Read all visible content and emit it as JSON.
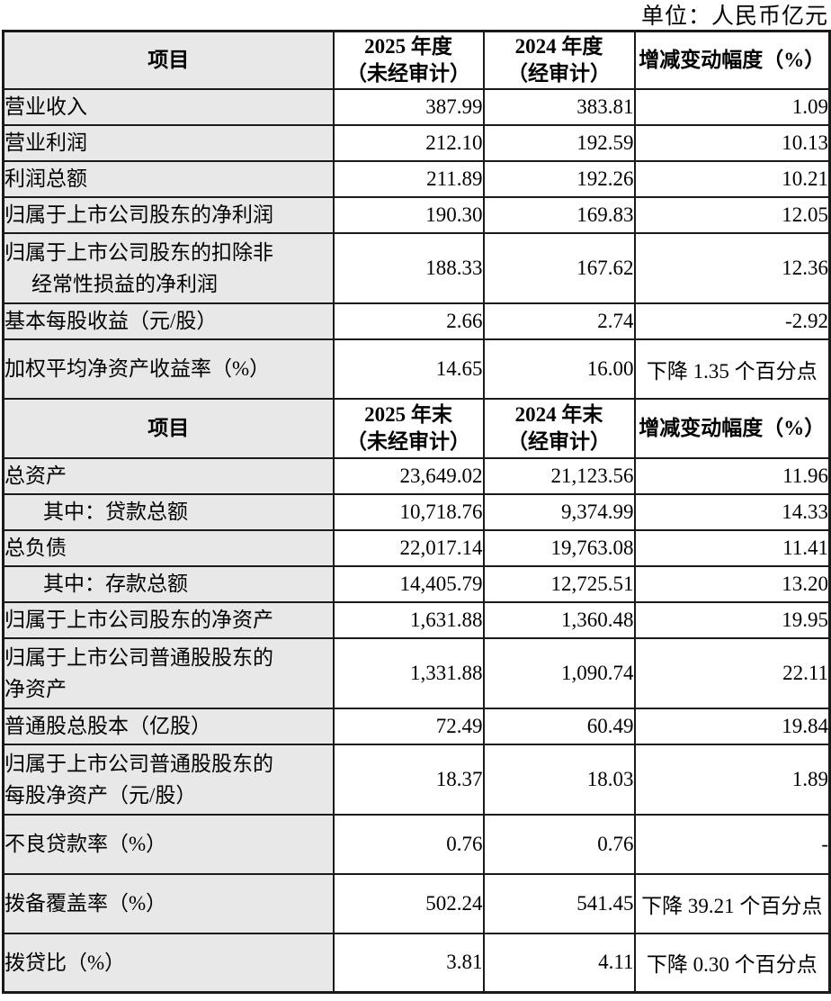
{
  "unit_label": "单位：人民币亿元",
  "colors": {
    "item_column_bg": "#e8e8e8",
    "border": "#1a1a1a",
    "page_bg": "#ffffff"
  },
  "table": {
    "sections": [
      {
        "header": {
          "item": "项目",
          "col_2025": [
            "2025 年度",
            "（未经审计）"
          ],
          "col_2024": [
            "2024 年度",
            "（经审计）"
          ],
          "col_change": "增减变动幅度（%）"
        },
        "rows": [
          {
            "item": [
              "营业收入"
            ],
            "v2025": "387.99",
            "v2024": "383.81",
            "change": "1.09"
          },
          {
            "item": [
              "营业利润"
            ],
            "v2025": "212.10",
            "v2024": "192.59",
            "change": "10.13"
          },
          {
            "item": [
              "利润总额"
            ],
            "v2025": "211.89",
            "v2024": "192.26",
            "change": "10.21"
          },
          {
            "item": [
              "归属于上市公司股东的净利润"
            ],
            "v2025": "190.30",
            "v2024": "169.83",
            "change": "12.05"
          },
          {
            "item": [
              "归属于上市公司股东的扣除非",
              "经常性损益的净利润"
            ],
            "indent_line2": true,
            "v2025": "188.33",
            "v2024": "167.62",
            "change": "12.36"
          },
          {
            "item": [
              "基本每股收益（元/股）"
            ],
            "v2025": "2.66",
            "v2024": "2.74",
            "change": "-2.92"
          },
          {
            "item": [
              "加权平均净资产收益率（%）"
            ],
            "tall": true,
            "v2025": "14.65",
            "v2024": "16.00",
            "change": "下降 1.35 个百分点",
            "change_center": true
          }
        ]
      },
      {
        "header": {
          "item": "项目",
          "col_2025": [
            "2025 年末",
            "（未经审计）"
          ],
          "col_2024": [
            "2024 年末",
            "（经审计）"
          ],
          "col_change": "增减变动幅度（%）"
        },
        "rows": [
          {
            "item": [
              "总资产"
            ],
            "v2025": "23,649.02",
            "v2024": "21,123.56",
            "change": "11.96"
          },
          {
            "item": [
              "其中：贷款总额"
            ],
            "indent": true,
            "v2025": "10,718.76",
            "v2024": "9,374.99",
            "change": "14.33"
          },
          {
            "item": [
              "总负债"
            ],
            "v2025": "22,017.14",
            "v2024": "19,763.08",
            "change": "11.41"
          },
          {
            "item": [
              "其中：存款总额"
            ],
            "indent": true,
            "v2025": "14,405.79",
            "v2024": "12,725.51",
            "change": "13.20"
          },
          {
            "item": [
              "归属于上市公司股东的净资产"
            ],
            "v2025": "1,631.88",
            "v2024": "1,360.48",
            "change": "19.95"
          },
          {
            "item": [
              "归属于上市公司普通股股东的",
              "净资产"
            ],
            "v2025": "1,331.88",
            "v2024": "1,090.74",
            "change": "22.11"
          },
          {
            "item": [
              "普通股总股本（亿股）"
            ],
            "v2025": "72.49",
            "v2024": "60.49",
            "change": "19.84"
          },
          {
            "item": [
              "归属于上市公司普通股股东的",
              "每股净资产（元/股）"
            ],
            "v2025": "18.37",
            "v2024": "18.03",
            "change": "1.89"
          },
          {
            "item": [
              "不良贷款率（%）"
            ],
            "tall": true,
            "v2025": "0.76",
            "v2024": "0.76",
            "change": "-"
          },
          {
            "item": [
              "拨备覆盖率（%）"
            ],
            "tall": true,
            "v2025": "502.24",
            "v2024": "541.45",
            "change": "下降 39.21 个百分点",
            "change_center": true
          },
          {
            "item": [
              "拨贷比（%）"
            ],
            "tall": true,
            "v2025": "3.81",
            "v2024": "4.11",
            "change": "下降 0.30 个百分点",
            "change_center": true
          }
        ]
      }
    ]
  }
}
